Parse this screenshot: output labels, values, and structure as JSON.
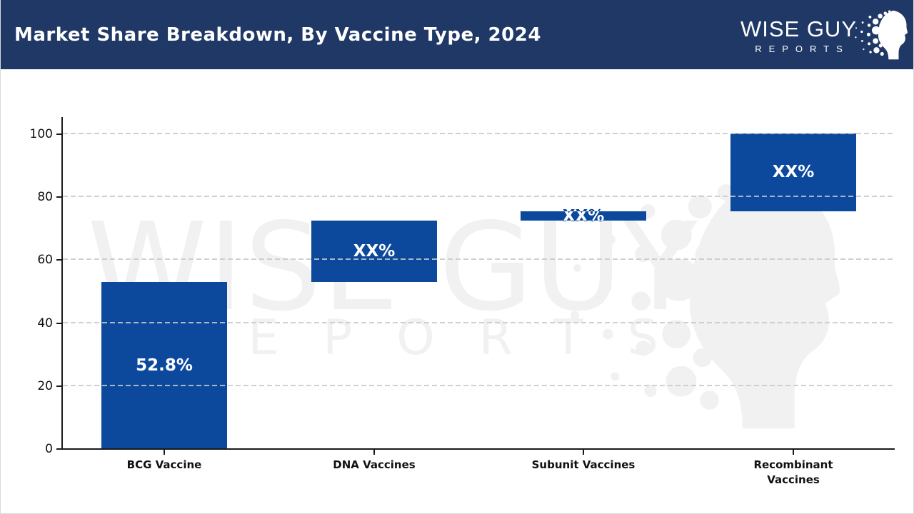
{
  "header": {
    "title": "Market Share Breakdown, By Vaccine Type, 2024",
    "logo": {
      "line1": "WISE GUY",
      "line2": "REPORTS"
    }
  },
  "watermark": {
    "line1": "WISE GUY",
    "line2": "REPORTS"
  },
  "colors": {
    "header_bg": "#1f3865",
    "bar": "#0c499c",
    "grid": "#cccccc",
    "axis": "#1a1a1a",
    "bar_label": "#ffffff",
    "watermark": "#f1f1f1"
  },
  "chart_data": {
    "type": "bar",
    "subtype": "floating-waterfall",
    "title": "Market Share Breakdown, By Vaccine Type, 2024",
    "categories": [
      "BCG Vaccine",
      "DNA Vaccines",
      "Subunit Vaccines",
      "Recombinant Vaccines"
    ],
    "series": [
      {
        "name": "Market share (%)",
        "segments": [
          {
            "category": "BCG Vaccine",
            "start": 0,
            "end": 52.8,
            "label": "52.8%"
          },
          {
            "category": "DNA Vaccines",
            "start": 52.8,
            "end": 72.3,
            "label": "XX%"
          },
          {
            "category": "Subunit Vaccines",
            "start": 72.3,
            "end": 75.3,
            "label": "XX%"
          },
          {
            "category": "Recombinant Vaccines",
            "start": 75.3,
            "end": 100,
            "label": "XX%"
          }
        ]
      }
    ],
    "xlabel": "",
    "ylabel": "",
    "ylim": [
      0,
      105
    ],
    "yticks": [
      0,
      20,
      40,
      60,
      80,
      100
    ],
    "grid": "horizontal-dashed",
    "legend": "none"
  }
}
